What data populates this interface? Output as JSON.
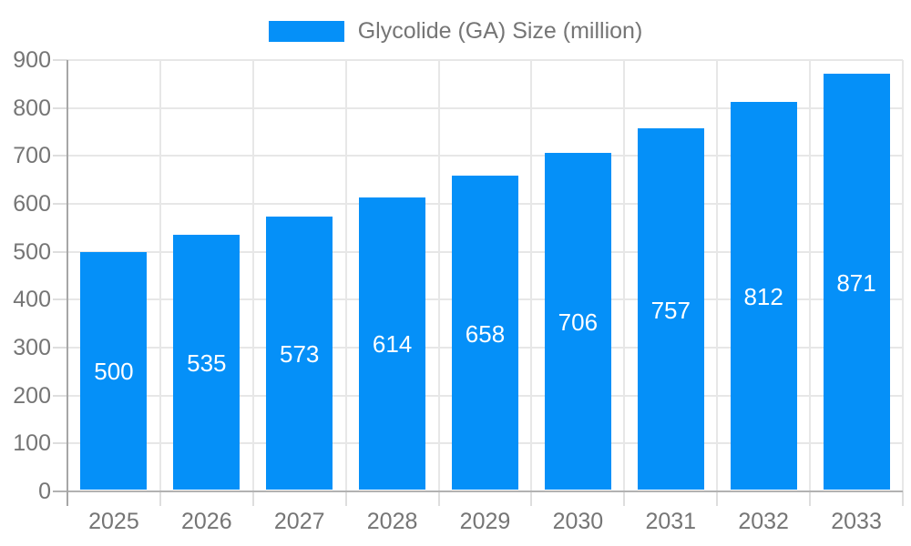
{
  "legend": {
    "label": "Glycolide (GA) Size (million)"
  },
  "chart_data": {
    "type": "bar",
    "title": "",
    "xlabel": "",
    "ylabel": "",
    "categories": [
      "2025",
      "2026",
      "2027",
      "2028",
      "2029",
      "2030",
      "2031",
      "2032",
      "2033"
    ],
    "series": [
      {
        "name": "Glycolide (GA) Size (million)",
        "values": [
          500,
          535,
          573,
          614,
          658,
          706,
          757,
          812,
          871
        ]
      }
    ],
    "ylim": [
      0,
      900
    ],
    "yticks": [
      0,
      100,
      200,
      300,
      400,
      500,
      600,
      700,
      800,
      900
    ],
    "grid": "horizontal lines every 100 plus vertical lines at category boundaries",
    "legend_position": "top-center",
    "value_labels": "shown inside bars, white, vertically centered",
    "colors": {
      "bar": "#0590f8",
      "axis_text": "#757575",
      "gridline": "#e7e7e7",
      "axis_line": "#b2b2b2",
      "value_label": "#ffffff"
    }
  }
}
